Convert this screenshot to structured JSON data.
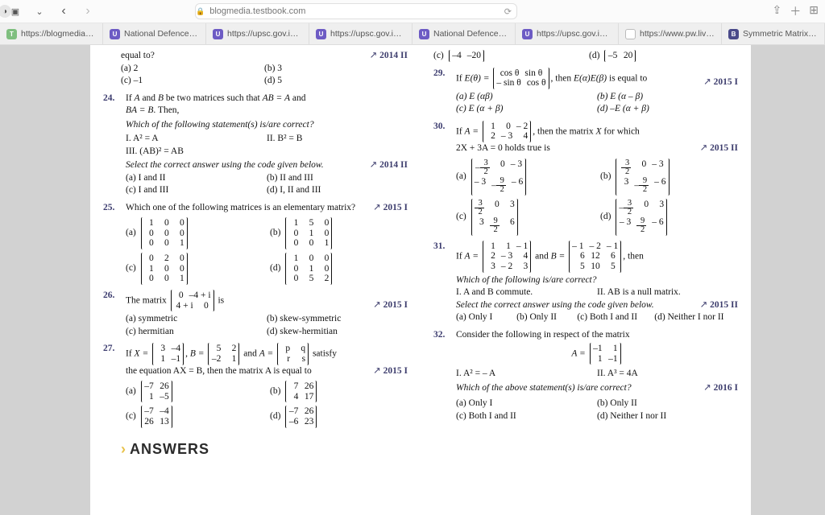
{
  "browser": {
    "url_host": "blogmedia.testbook.com",
    "sidebar_icon": "▣",
    "dropdown_icon": "⌄",
    "back": "‹",
    "forward": "›",
    "shield": "◑",
    "lock": "🔒",
    "reload": "⟳",
    "share": "⇪",
    "plus": "＋",
    "grid": "⊞"
  },
  "tabs": [
    {
      "fav": "fav-t",
      "letter": "T",
      "label": "https://blogmedia.te…"
    },
    {
      "fav": "fav-u",
      "letter": "U",
      "label": "National Defence A…"
    },
    {
      "fav": "fav-u",
      "letter": "U",
      "label": "https://upsc.gov.in/…"
    },
    {
      "fav": "fav-u",
      "letter": "U",
      "label": "https://upsc.gov.in/…"
    },
    {
      "fav": "fav-u",
      "letter": "U",
      "label": "National Defence A…"
    },
    {
      "fav": "fav-u",
      "letter": "U",
      "label": "https://upsc.gov.in/…"
    },
    {
      "fav": "fav-p",
      "letter": "◉",
      "label": "https://www.pw.live/…"
    },
    {
      "fav": "fav-b",
      "letter": "B",
      "label": "Symmetric Matrix &…"
    }
  ],
  "col1": {
    "pre": {
      "line": "equal to?",
      "year": "2014 II",
      "opts": [
        [
          "(a) 2",
          "(b) 3"
        ],
        [
          "(c) –1",
          "(d) 5"
        ]
      ]
    },
    "q24": {
      "num": "24.",
      "line1a": "If ",
      "line1b": " and ",
      "line1c": " be two matrices such that ",
      "A": "A",
      "B": "B",
      "eq1": "AB = A",
      "eq2": "BA = B",
      "line2": " and ",
      "line3": ". Then,",
      "which": "Which of the following statement(s) is/are correct?",
      "i": "I.  A² = A",
      "ii": "II.  B² = B",
      "iii": "III.  (AB)² = AB",
      "sel": "Select the correct answer using the code given below.",
      "year": "2014 II",
      "opts": [
        [
          "(a) I and II",
          "(b) II and III"
        ],
        [
          "(c) I and III",
          "(d) I, II and III"
        ]
      ]
    },
    "q25": {
      "num": "25.",
      "text": "Which one of the following matrices is an elementary matrix?",
      "year": "2015 I",
      "a": "(a)",
      "b": "(b)",
      "c": "(c)",
      "d": "(d)",
      "ma": [
        [
          "1",
          "0",
          "0"
        ],
        [
          "0",
          "0",
          "0"
        ],
        [
          "0",
          "0",
          "1"
        ]
      ],
      "mb": [
        [
          "1",
          "5",
          "0"
        ],
        [
          "0",
          "1",
          "0"
        ],
        [
          "0",
          "0",
          "1"
        ]
      ],
      "mc": [
        [
          "0",
          "2",
          "0"
        ],
        [
          "1",
          "0",
          "0"
        ],
        [
          "0",
          "0",
          "1"
        ]
      ],
      "md": [
        [
          "1",
          "0",
          "0"
        ],
        [
          "0",
          "1",
          "0"
        ],
        [
          "0",
          "5",
          "2"
        ]
      ]
    },
    "q26": {
      "num": "26.",
      "text1": "The matrix ",
      "text2": " is",
      "year": "2015 I",
      "mrow1": [
        "0",
        "–4 + i"
      ],
      "mrow2": [
        "4 + i",
        "0"
      ],
      "opts": [
        [
          "(a) symmetric",
          "(b) skew-symmetric"
        ],
        [
          "(c) hermitian",
          "(d) skew-hermitian"
        ]
      ]
    },
    "q27": {
      "num": "27.",
      "t_if": "If ",
      "X": "X = ",
      "B": "B = ",
      "A": "A = ",
      "mx": [
        [
          "3",
          "–4"
        ],
        [
          "1",
          "–1"
        ]
      ],
      "mb": [
        [
          "5",
          "2"
        ],
        [
          "–2",
          "1"
        ]
      ],
      "ma": [
        [
          "p",
          "q"
        ],
        [
          "r",
          "s"
        ]
      ],
      "and": " and ",
      "sat": " satisfy",
      "line2": "the equation AX = B, then the matrix A is equal to",
      "year": "2015 I",
      "a": "(a)",
      "b": "(b)",
      "c": "(c)",
      "d": "(d)",
      "oa": [
        [
          "–7",
          "26"
        ],
        [
          "1",
          "–5"
        ]
      ],
      "ob": [
        [
          "7",
          "26"
        ],
        [
          "4",
          "17"
        ]
      ],
      "oc": [
        [
          "–7",
          "–4"
        ],
        [
          "26",
          "13"
        ]
      ],
      "od": [
        [
          "–7",
          "26"
        ],
        [
          "–6",
          "23"
        ]
      ]
    },
    "answers": "ANSWERS"
  },
  "col2": {
    "pretop": {
      "c": "(c)",
      "d": "(d)",
      "mc": [
        [
          "",
          ""
        ],
        [
          "–4",
          "–20"
        ]
      ],
      "md": [
        [
          "",
          ""
        ],
        [
          "–5",
          "20"
        ]
      ]
    },
    "q29": {
      "num": "29.",
      "if": "If ",
      "E": "E(θ) = ",
      "m": [
        [
          "cos θ",
          "sin θ"
        ],
        [
          "– sin θ",
          "cos θ"
        ]
      ],
      "then": ", then ",
      "eab": "E(α)E(β)",
      "eq": " is equal to",
      "year": "2015 I",
      "opts": [
        [
          "(a) E (αβ)",
          "(b) E (α – β)"
        ],
        [
          "(c) E (α + β)",
          "(d) –E (α + β)"
        ]
      ]
    },
    "q30": {
      "num": "30.",
      "if": "If ",
      "A": "A = ",
      "m": [
        [
          "1",
          "0",
          "– 2"
        ],
        [
          "2",
          "– 3",
          "4"
        ]
      ],
      "then": ", then the matrix ",
      "X": "X",
      "for": " for which",
      "line2": "2X + 3A = 0 holds true is",
      "year": "2015 II",
      "a": "(a)",
      "b": "(b)",
      "c": "(c)",
      "d": "(d)"
    },
    "q31": {
      "num": "31.",
      "if": "If ",
      "A": "A = ",
      "and": " and ",
      "B": "B = ",
      "then": ", then",
      "ma": [
        [
          "1",
          "1",
          "– 1"
        ],
        [
          "2",
          "– 3",
          "4"
        ],
        [
          "3",
          "– 2",
          "3"
        ]
      ],
      "mb": [
        [
          "– 1",
          "– 2",
          "– 1"
        ],
        [
          "6",
          "12",
          "6"
        ],
        [
          "5",
          "10",
          "5"
        ]
      ],
      "which": "Which of the following is/are correct?",
      "i": "I. A and B commute.",
      "ii": "II. AB is a null matrix.",
      "sel": "Select the correct answer using the code given below.",
      "year": "2015 II",
      "opts": [
        "(a) Only I",
        "(b) Only II",
        "(c) Both I and II",
        "(d) Neither I nor II"
      ]
    },
    "q32": {
      "num": "32.",
      "text": "Consider the following in respect of the matrix",
      "A": "A = ",
      "m": [
        [
          "–1",
          "1"
        ],
        [
          "1",
          "–1"
        ]
      ],
      "i": "I.  A² = – A",
      "ii": "II.  A³ = 4A",
      "which": "Which of the above statement(s) is/are correct?",
      "year": "2016 I",
      "opts": [
        [
          "(a) Only I",
          "(b) Only II"
        ],
        [
          "(c) Both I and II",
          "(d) Neither I nor II"
        ]
      ]
    }
  }
}
